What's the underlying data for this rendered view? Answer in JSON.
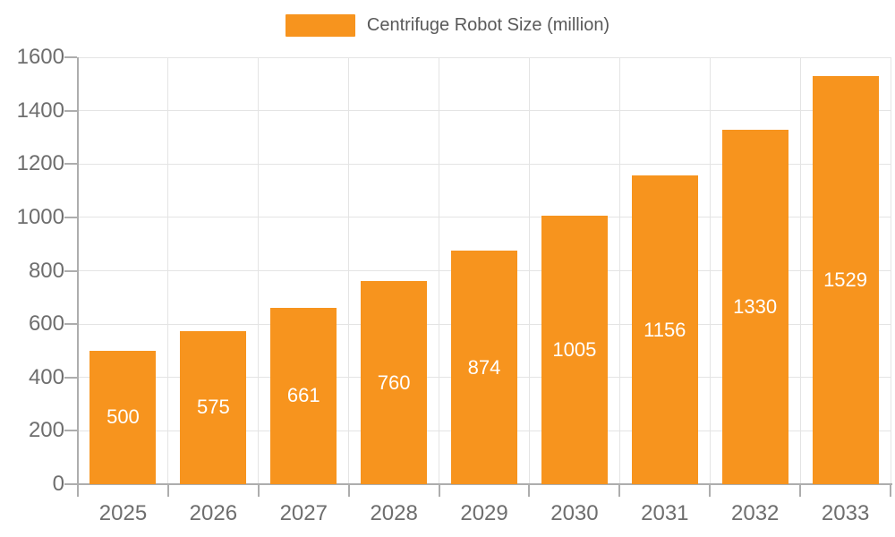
{
  "chart_data": {
    "type": "bar",
    "title": "Centrifuge Robot Size (million)",
    "legend": {
      "entries": [
        "Centrifuge Robot Size (million)"
      ],
      "position": "top-center"
    },
    "categories": [
      "2025",
      "2026",
      "2027",
      "2028",
      "2029",
      "2030",
      "2031",
      "2032",
      "2033"
    ],
    "series": [
      {
        "name": "Centrifuge Robot Size (million)",
        "values": [
          500,
          575,
          661,
          760,
          874,
          1005,
          1156,
          1330,
          1529
        ]
      }
    ],
    "xlabel": "",
    "ylabel": "",
    "ylim": [
      0,
      1600
    ],
    "yticks": [
      0,
      200,
      400,
      600,
      800,
      1000,
      1200,
      1400,
      1600
    ],
    "grid": true,
    "bar_labels_visible": true,
    "colors": {
      "bar": "#F7941E",
      "bar_label": "#FFFFFF",
      "axis_line": "#ADADAD",
      "gridline": "#E4E4E4",
      "tick_label": "#6E6E6E",
      "legend_text": "#595959",
      "background": "#FFFFFF"
    }
  }
}
